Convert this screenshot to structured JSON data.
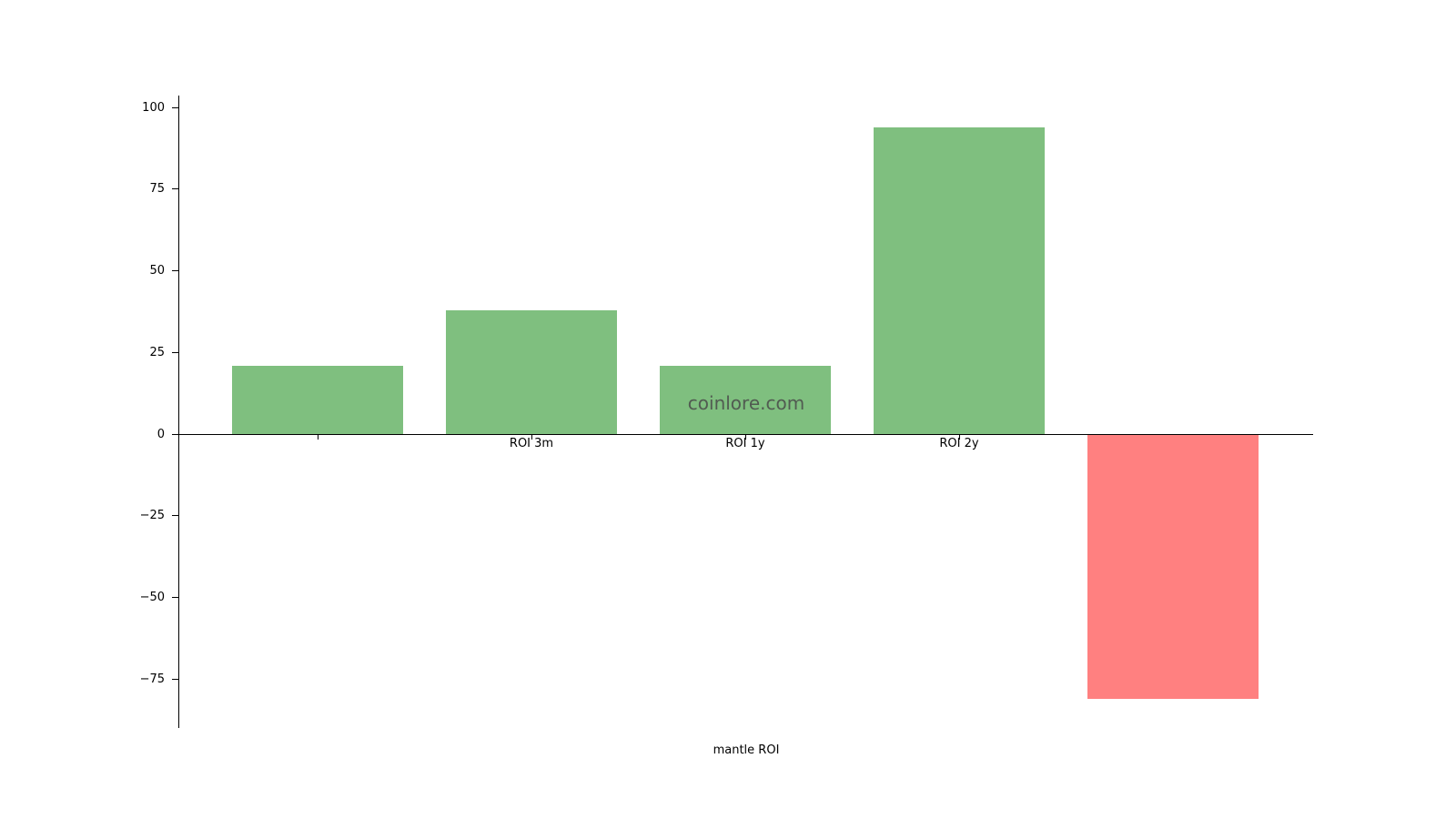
{
  "page": {
    "background_color": "#ffffff"
  },
  "watermark": {
    "text": "coinlore.com",
    "color": "#4a4a4a"
  },
  "chart_data": {
    "type": "bar",
    "title": "mantle ROI",
    "categories": [
      "",
      "ROI 3m",
      "ROI 1y",
      "ROI 2y",
      ""
    ],
    "values": [
      21,
      38,
      21,
      94,
      -81
    ],
    "series": [
      {
        "name": "mantle ROI",
        "values": [
          21,
          38,
          21,
          94,
          -81
        ]
      }
    ],
    "positive_color": "#7fbf7f",
    "negative_color": "#ff8080",
    "axis_color": "#000000",
    "ylim": [
      -90,
      103.6
    ],
    "yticks": {
      "values": [
        100,
        75,
        50,
        25,
        0,
        -25,
        -50,
        -75
      ],
      "labels": [
        "100",
        "75",
        "50",
        "25",
        "0",
        "−25",
        "−50",
        "−75"
      ]
    },
    "grid": false,
    "legend_position": "none",
    "xlabel": "",
    "ylabel": ""
  }
}
